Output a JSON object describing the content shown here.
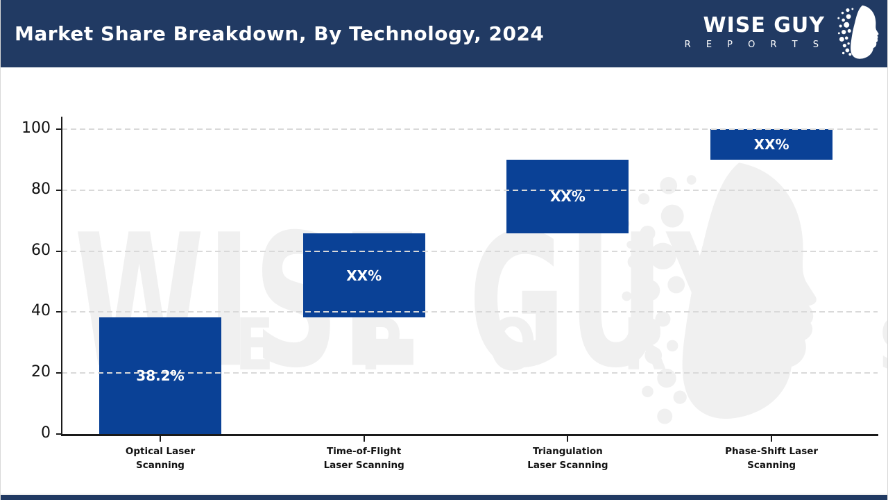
{
  "header": {
    "title": "Market Share Breakdown, By Technology, 2024",
    "bg_color": "#213a63",
    "logo": {
      "name": "WISE GUY",
      "tagline": "R E P O R T S"
    }
  },
  "watermark": {
    "name": "WISE GUY",
    "tagline": "R E P O R T S"
  },
  "chart_data": {
    "type": "bar",
    "variant": "waterfall",
    "title": "Market Share Breakdown, By Technology, 2024",
    "categories": [
      "Optical Laser Scanning",
      "Time-of-Flight Laser Scanning",
      "Triangulation Laser Scanning",
      "Phase-Shift Laser Scanning"
    ],
    "category_lines": [
      [
        "Optical Laser",
        "Scanning"
      ],
      [
        "Time-of-Flight",
        "Laser Scanning"
      ],
      [
        "Triangulation",
        "Laser Scanning"
      ],
      [
        "Phase-Shift Laser",
        "Scanning"
      ]
    ],
    "segments": [
      {
        "category": "Optical Laser Scanning",
        "start": 0,
        "end": 38.2,
        "label": "38.2%"
      },
      {
        "category": "Time-of-Flight Laser Scanning",
        "start": 38.2,
        "end": 65.8,
        "label": "XX%"
      },
      {
        "category": "Triangulation Laser Scanning",
        "start": 65.8,
        "end": 90,
        "label": "XX%"
      },
      {
        "category": "Phase-Shift Laser Scanning",
        "start": 90,
        "end": 100,
        "label": "XX%"
      }
    ],
    "xlabel": "",
    "ylabel": "",
    "ylim": [
      0,
      100
    ],
    "yticks": [
      0,
      20,
      40,
      60,
      80,
      100
    ],
    "grid": "horizontal dashed",
    "legend": "none",
    "bar_color": "#0a4196",
    "bar_label_color": "#ffffff",
    "axis_color": "#1a1a1a",
    "gridline_color": "#d9d9d9",
    "tick_label_color": "#111111"
  },
  "footer": {
    "bg_color": "#213a63"
  }
}
